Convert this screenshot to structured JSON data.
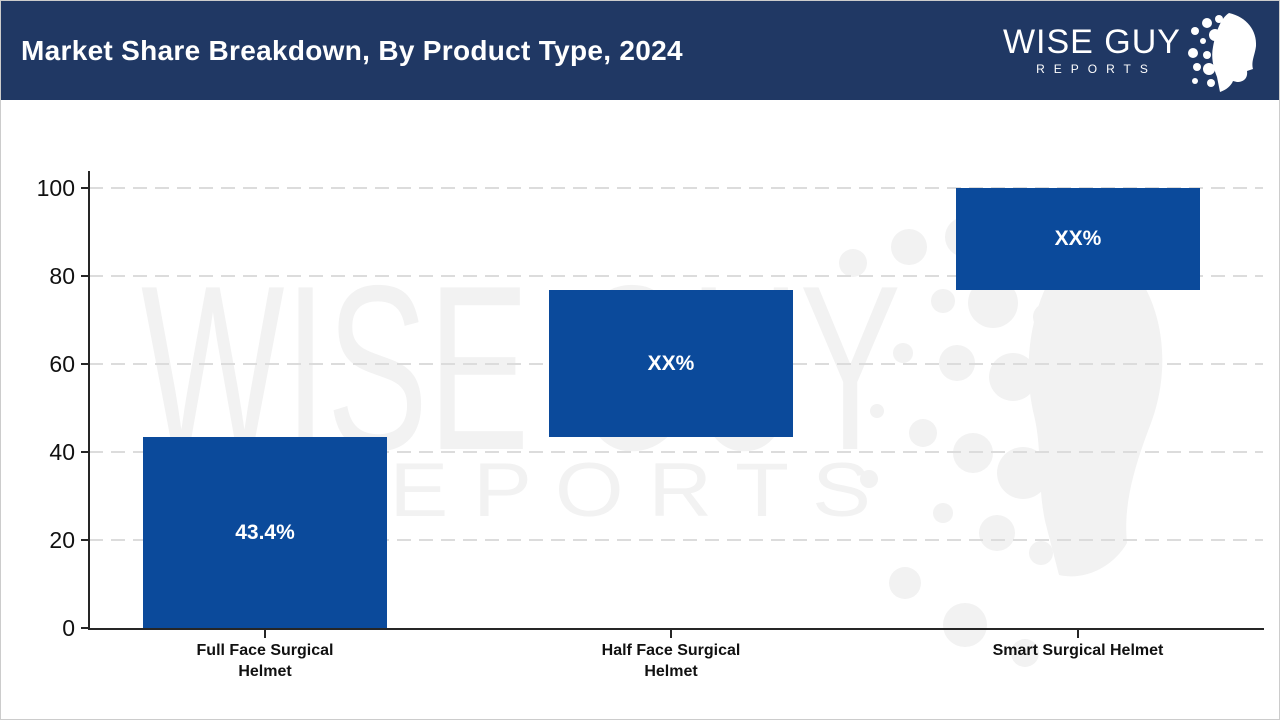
{
  "header": {
    "title": "Market Share Breakdown, By Product Type, 2024",
    "logo": {
      "line1": "WISE GUY",
      "line2": "REPORTS"
    }
  },
  "watermark": {
    "line1": "WISE GUY",
    "line2": "R E P O R T S"
  },
  "colors": {
    "header_bg": "#203864",
    "bar_fill": "#0b4a9b",
    "grid": "#dcdcdc",
    "axis": "#262626",
    "text_dark": "#111111",
    "label_on_bar": "#ffffff",
    "watermark_gray": "#f2f2f2",
    "page_border": "#cccccc"
  },
  "chart_data": {
    "type": "bar",
    "subtype": "waterfall",
    "title": "Market Share Breakdown, By Product Type, 2024",
    "categories": [
      "Full Face Surgical Helmet",
      "Half Face Surgical Helmet",
      "Smart Surgical Helmet"
    ],
    "segments": [
      {
        "category": "Full Face Surgical Helmet",
        "start": 0,
        "end": 43.4,
        "value": 43.4,
        "label": "43.4%"
      },
      {
        "category": "Half Face Surgical Helmet",
        "start": 43.4,
        "end": 76.8,
        "value": 33.4,
        "label": "XX%"
      },
      {
        "category": "Smart Surgical Helmet",
        "start": 76.8,
        "end": 100,
        "value": 23.2,
        "label": "XX%"
      }
    ],
    "xlabel": "",
    "ylabel": "",
    "ylim": [
      0,
      100
    ],
    "yticks": [
      0,
      20,
      40,
      60,
      80,
      100
    ],
    "grid": "horizontal-dashed",
    "legend": "none"
  }
}
